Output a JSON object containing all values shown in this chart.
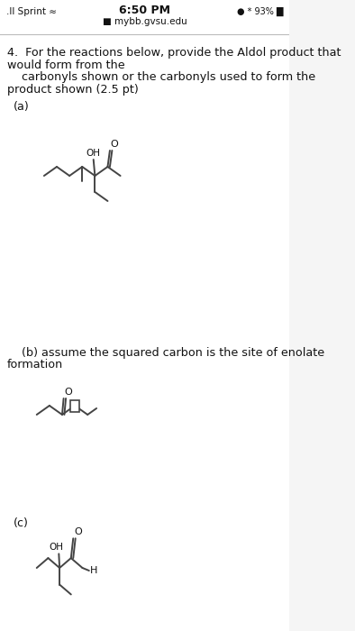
{
  "bg_color": "#f5f5f5",
  "line_color": "#444444",
  "text_color": "#111111",
  "font_size_body": 9.2,
  "font_size_status": 7.5,
  "question_lines": [
    "4.  For the reactions below, provide the Aldol product that",
    "would form from the",
    "    carbonyls shown or the carbonyls used to form the",
    "product shown (2.5 pt)"
  ],
  "part_a_label": "(a)",
  "part_b_label1": "    (b) assume the squared carbon is the site of enolate",
  "part_b_label2": "formation",
  "part_c_label": "(c)",
  "status_left": ".ll Sprint",
  "status_center1": "6:50 PM",
  "status_center2": "mybb.gvsu.edu",
  "status_right": "93%"
}
